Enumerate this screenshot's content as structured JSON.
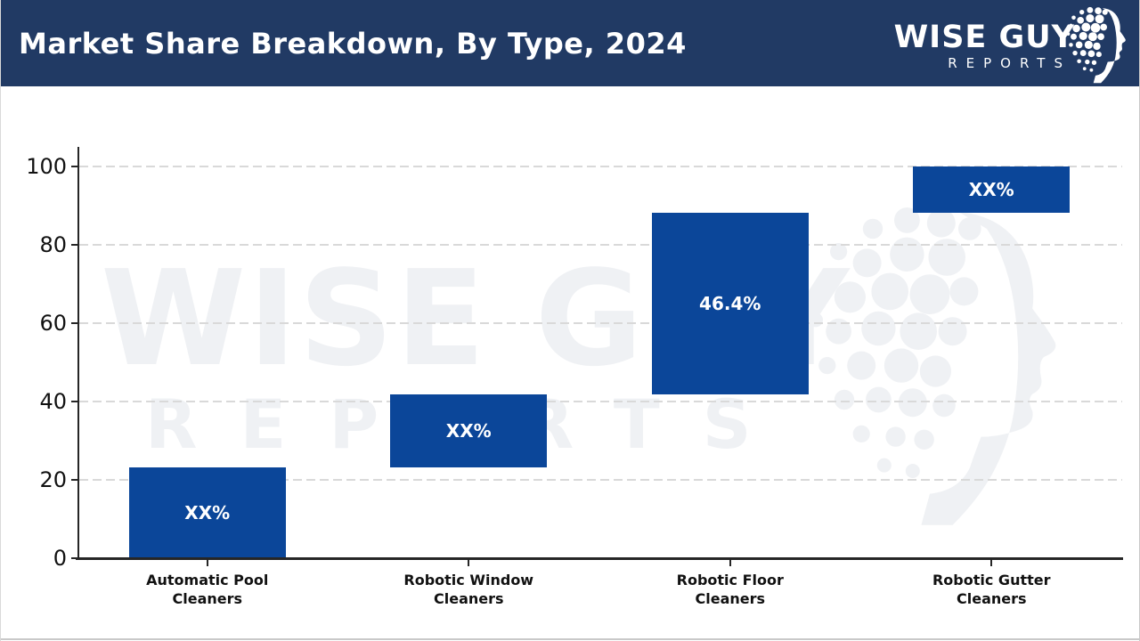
{
  "header": {
    "title": "Market Share Breakdown, By Type, 2024",
    "logo": {
      "name": "WISE GUY",
      "sub": "REPORTS"
    }
  },
  "watermark": {
    "name": "WISE GUY",
    "sub": "REPORTS"
  },
  "chart_data": {
    "type": "bar",
    "subtype": "floating-waterfall-segments",
    "title": "Market Share Breakdown, By Type, 2024",
    "categories": [
      [
        "Automatic Pool",
        "Cleaners"
      ],
      [
        "Robotic Window",
        "Cleaners"
      ],
      [
        "Robotic Floor",
        "Cleaners"
      ],
      [
        "Robotic Gutter",
        "Cleaners"
      ]
    ],
    "segments": [
      {
        "start": 0,
        "end": 23.2,
        "label": "XX%"
      },
      {
        "start": 23.2,
        "end": 41.8,
        "label": "XX%"
      },
      {
        "start": 41.8,
        "end": 88.2,
        "label": "46.4%",
        "value": 46.4
      },
      {
        "start": 88.2,
        "end": 100,
        "label": "XX%"
      }
    ],
    "yticks": [
      0,
      20,
      40,
      60,
      80,
      100
    ],
    "ylim": [
      0,
      105
    ],
    "xlabel": "",
    "ylabel": "",
    "grid": "horizontal-dashed",
    "legend": "none",
    "bar_color": "#0b4699",
    "bar_label_color": "#ffffff",
    "axis_color": "#262626",
    "grid_color": "#d9d9d9",
    "header_color": "#213a64",
    "watermark_color": "#eff1f4"
  }
}
